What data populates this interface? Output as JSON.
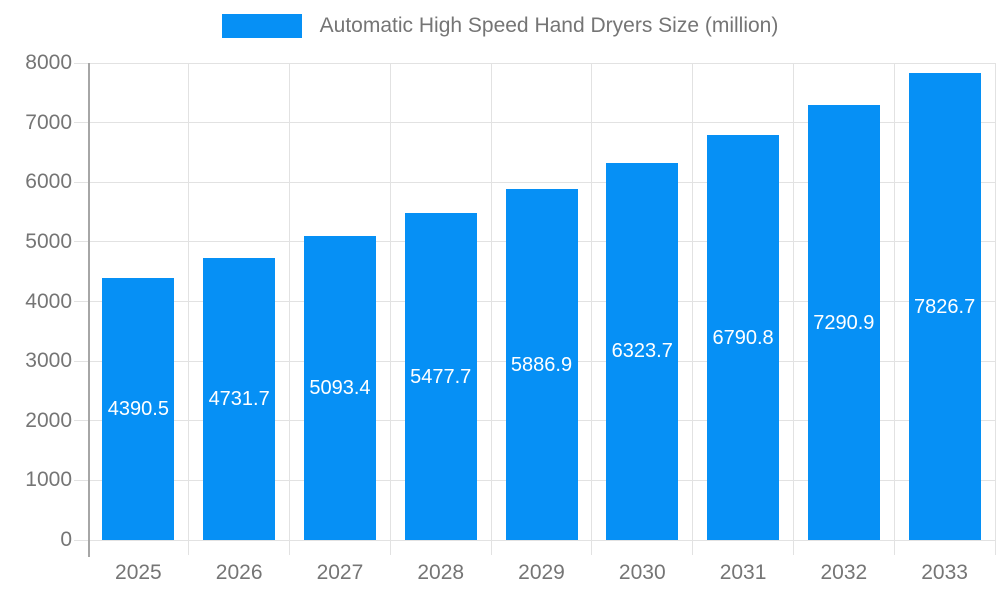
{
  "legend": {
    "label": "Automatic High Speed Hand Dryers Size (million)",
    "swatch_color": "#0690F5"
  },
  "chart_data": {
    "type": "bar",
    "title": "Automatic High Speed Hand Dryers Size (million)",
    "categories": [
      "2025",
      "2026",
      "2027",
      "2028",
      "2029",
      "2030",
      "2031",
      "2032",
      "2033"
    ],
    "series": [
      {
        "name": "Automatic High Speed Hand Dryers Size (million)",
        "values": [
          4390.5,
          4731.7,
          5093.4,
          5477.7,
          5886.9,
          6323.7,
          6790.8,
          7290.9,
          7826.7
        ]
      }
    ],
    "value_labels": [
      "4390.5",
      "4731.7",
      "5093.4",
      "5477.7",
      "5886.9",
      "6323.7",
      "6790.8",
      "7290.9",
      "7826.7"
    ],
    "xlabel": "",
    "ylabel": "",
    "ylim": [
      0,
      8000
    ],
    "ytick_step": 1000,
    "ytick_labels": [
      "0",
      "1000",
      "2000",
      "3000",
      "4000",
      "5000",
      "6000",
      "7000",
      "8000"
    ],
    "grid": true,
    "legend_position": "top",
    "colors": {
      "bar": "#0690F5",
      "value_label": "#ffffff",
      "axis_text": "#757575",
      "gridline": "#e2e2e2",
      "axis_line": "#a6a6a6",
      "background": "#ffffff"
    }
  }
}
